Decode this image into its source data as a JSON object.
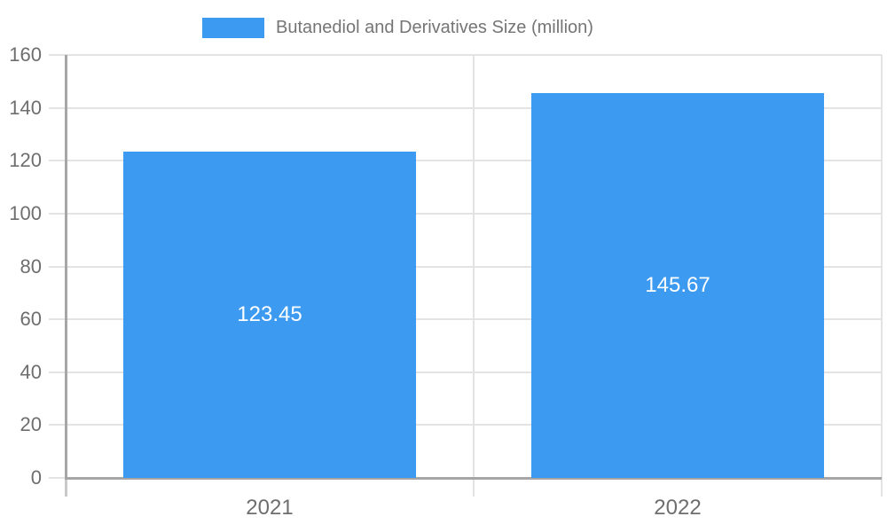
{
  "chart_data": {
    "type": "bar",
    "title": "Butanediol and Derivatives Size (million)",
    "categories": [
      "2021",
      "2022"
    ],
    "values": [
      123.45,
      145.67
    ],
    "value_labels": [
      "123.45",
      "145.67"
    ],
    "xlabel": "",
    "ylabel": "",
    "ylim": [
      0,
      160
    ],
    "yticks": [
      0,
      20,
      40,
      60,
      80,
      100,
      120,
      140,
      160
    ],
    "grid": true,
    "legend_position": "top",
    "colors": {
      "bar": "#3C9AF0",
      "bar_label": "#FFFFFF",
      "legend_text": "#757575",
      "axis_text": "#6E6E6E",
      "axis_line": "#A6A6A6",
      "grid_line": "#E3E3E3",
      "tick_below": "#C9C9C9"
    }
  }
}
